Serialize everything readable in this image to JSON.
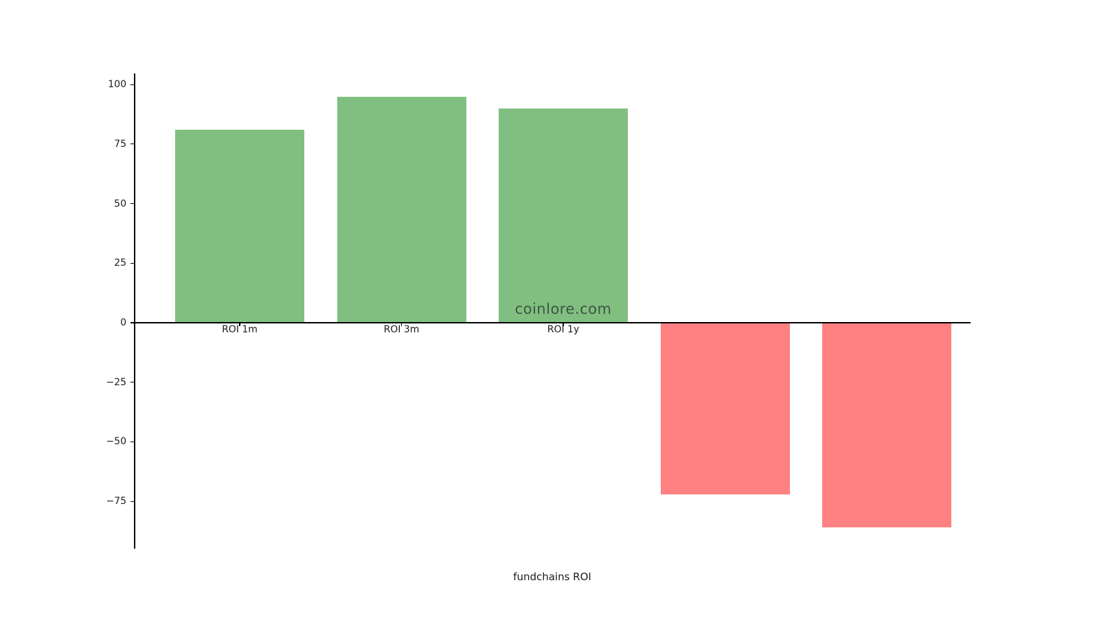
{
  "watermark": "coinlore.com",
  "colors": {
    "positive": "#80bf80",
    "negative": "#ff8080",
    "axis": "#000000",
    "tick_text": "#1a1a1a",
    "watermark_text": "#3f5345"
  },
  "chart_data": {
    "type": "bar",
    "categories": [
      "ROI 1m",
      "ROI 3m",
      "ROI 1y",
      "",
      ""
    ],
    "values": [
      81,
      95,
      90,
      -72,
      -86
    ],
    "series": [
      {
        "name": "fundchains ROI",
        "values": [
          81,
          95,
          90,
          -72,
          -86
        ],
        "colors": [
          "#80bf80",
          "#80bf80",
          "#80bf80",
          "#ff8080",
          "#ff8080"
        ]
      }
    ],
    "title": "",
    "xlabel": "fundchains ROI",
    "ylabel": "",
    "yticks": [
      100,
      75,
      50,
      25,
      0,
      -25,
      -50,
      -75
    ],
    "ylim": [
      -95,
      105
    ],
    "grid": false,
    "legend_position": "none",
    "baseline": 0
  }
}
